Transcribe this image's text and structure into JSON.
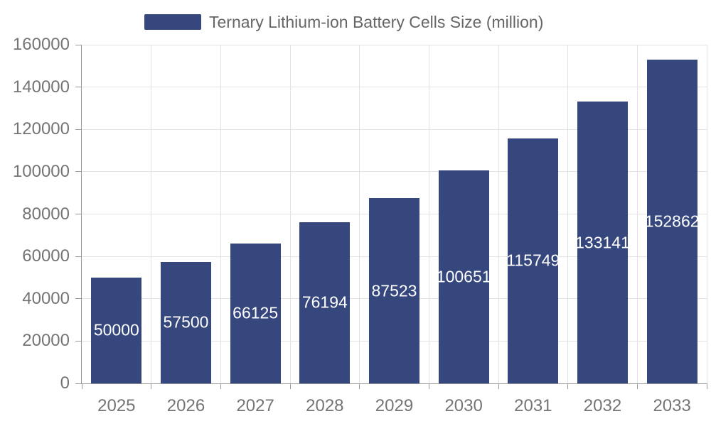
{
  "legend": {
    "label": "Ternary Lithium-ion Battery Cells Size (million)"
  },
  "chart_data": {
    "type": "bar",
    "title": "Ternary Lithium-ion Battery Cells Size (million)",
    "series_name": "Ternary Lithium-ion Battery Cells Size (million)",
    "categories": [
      "2025",
      "2026",
      "2027",
      "2028",
      "2029",
      "2030",
      "2031",
      "2032",
      "2033"
    ],
    "values": [
      50000,
      57500,
      66125,
      76194,
      87523,
      100651,
      115749,
      133141,
      152862
    ],
    "bar_labels": [
      "50000",
      "57500",
      "66125",
      "76194",
      "87523",
      "100651",
      "115749",
      "133141",
      "152862"
    ],
    "xlabel": "",
    "ylabel": "",
    "ylim": [
      0,
      160000
    ],
    "yticks": [
      0,
      20000,
      40000,
      60000,
      80000,
      100000,
      120000,
      140000,
      160000
    ],
    "ytick_labels": [
      "0",
      "20000",
      "40000",
      "60000",
      "80000",
      "100000",
      "120000",
      "140000",
      "160000"
    ],
    "grid": true,
    "legend_position": "top",
    "bar_label_position": "inside-middle"
  },
  "colors": {
    "bar": "#36477E",
    "bar_label": "#FFFFFF",
    "grid_line": "#E2E2E2",
    "axis_line": "#999999",
    "tick_label": "#757575",
    "legend_text": "#666666",
    "background": "#FFFFFF"
  }
}
